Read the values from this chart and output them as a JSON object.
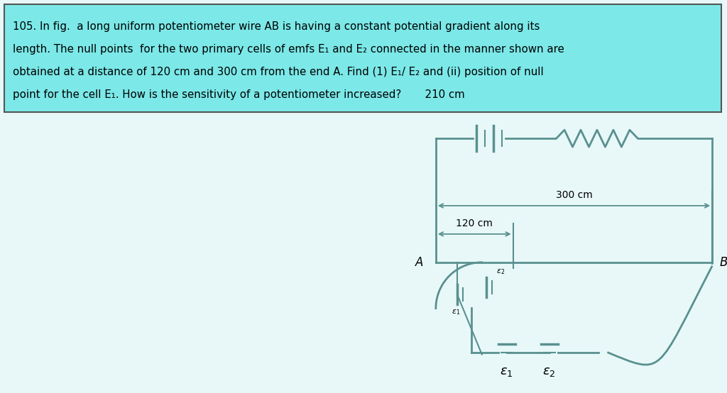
{
  "fig_bg": "#e8f8f8",
  "text_box_color": "#7ce8e8",
  "text_box_edge": "#555555",
  "circuit_color": "#5a9090",
  "question_line1": "105. In fig.  a long uniform potentiometer wire AB is having a constant potential gradient along its",
  "question_line2": "length. The null points  for the two primary cells of emfs E₁ and E₂ connected in the manner shown are",
  "question_line3": "obtained at a distance of 120 cm and 300 cm from the end A. Find (1) E₁/ E₂ and (ii) position of null",
  "question_line4": "point for the cell E₁. How is the sensitivity of a potentiometer increased?       210 cm",
  "label_A": "A",
  "label_B": "B",
  "label_300": "300 cm",
  "label_120": "120 cm",
  "label_e1_small": "ε₁",
  "label_e2_small": "ε₂",
  "label_E1": "ε₁",
  "label_E2": "ε₂"
}
